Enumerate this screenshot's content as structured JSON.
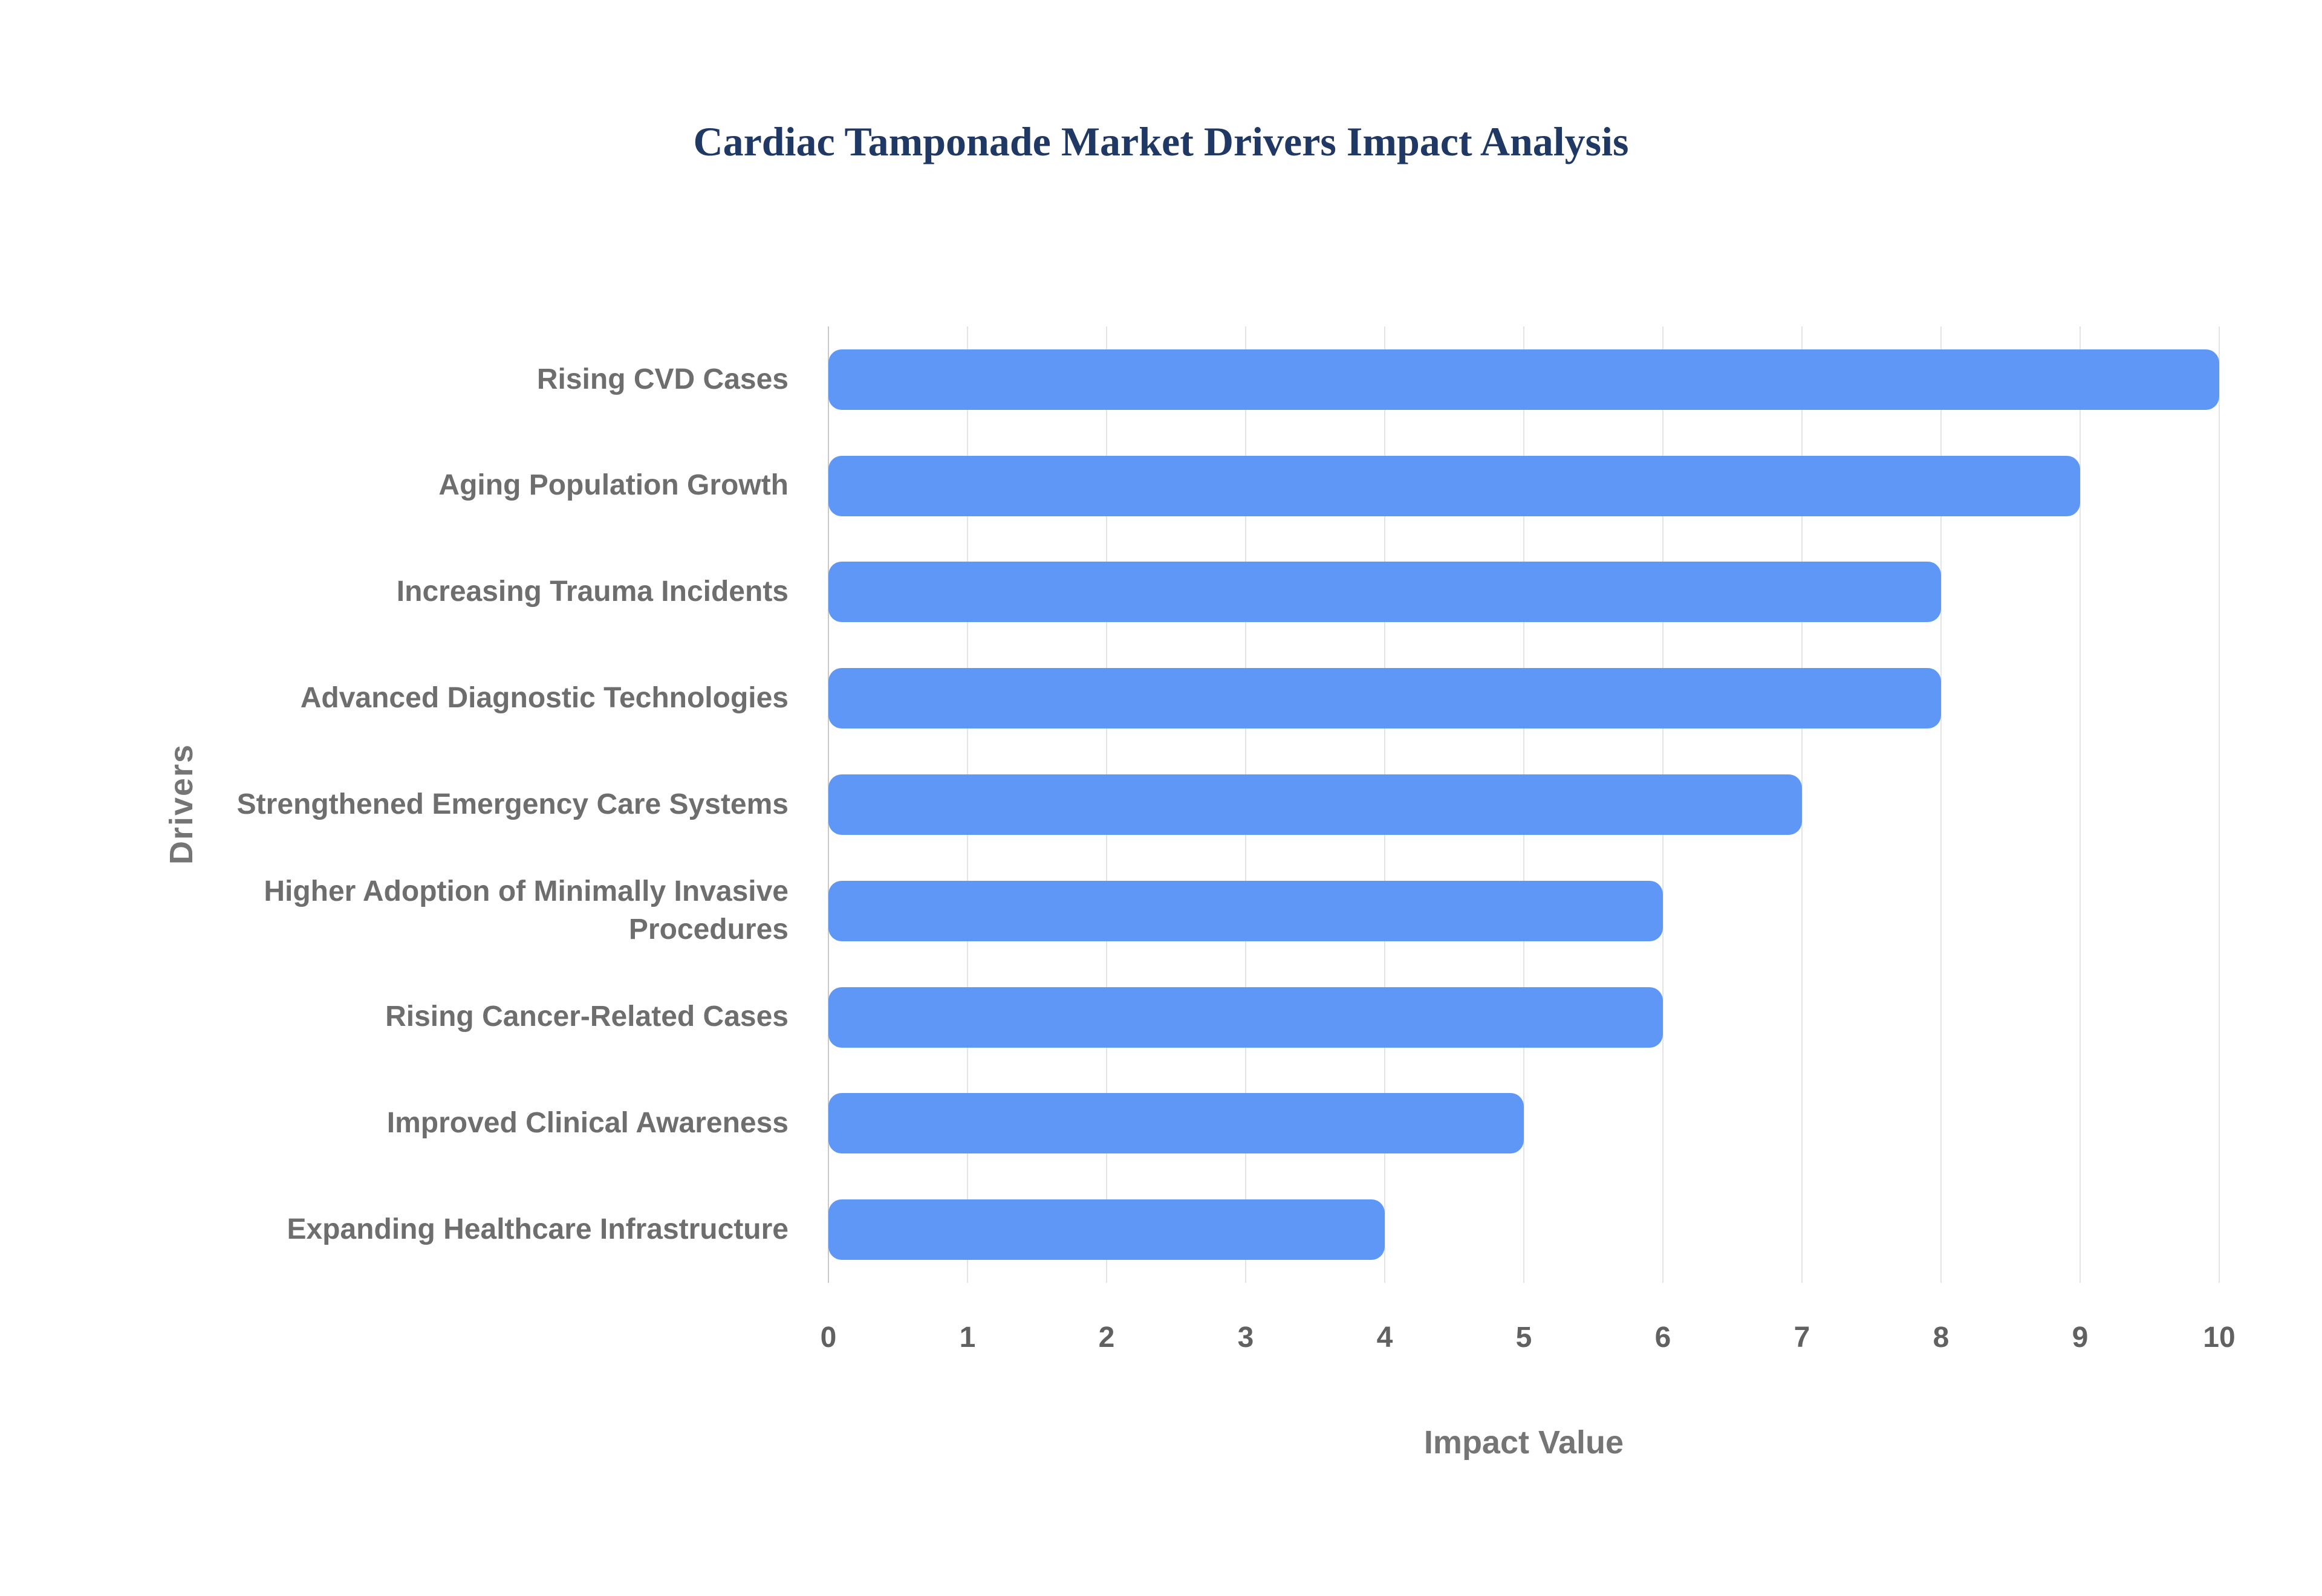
{
  "chart_data": {
    "type": "bar",
    "orientation": "horizontal",
    "title": "Cardiac Tamponade Market Drivers Impact Analysis",
    "xlabel": "Impact Value",
    "ylabel": "Drivers",
    "categories": [
      "Rising CVD Cases",
      "Aging Population Growth",
      "Increasing Trauma Incidents",
      "Advanced Diagnostic Technologies",
      "Strengthened Emergency Care Systems",
      "Higher Adoption of Minimally Invasive Procedures",
      "Rising Cancer-Related Cases",
      "Improved Clinical Awareness",
      "Expanding Healthcare Infrastructure"
    ],
    "values": [
      10,
      9,
      8,
      8,
      7,
      6,
      6,
      5,
      4
    ],
    "xlim": [
      0,
      10
    ],
    "xticks": [
      0,
      1,
      2,
      3,
      4,
      5,
      6,
      7,
      8,
      9,
      10
    ],
    "grid": true,
    "legend": "none",
    "colors": {
      "bar": "#5E97F6",
      "title": "#1f3864",
      "axis_label": "#757575",
      "tick_label": "#616161",
      "gridline": "#e4e4e4"
    }
  }
}
